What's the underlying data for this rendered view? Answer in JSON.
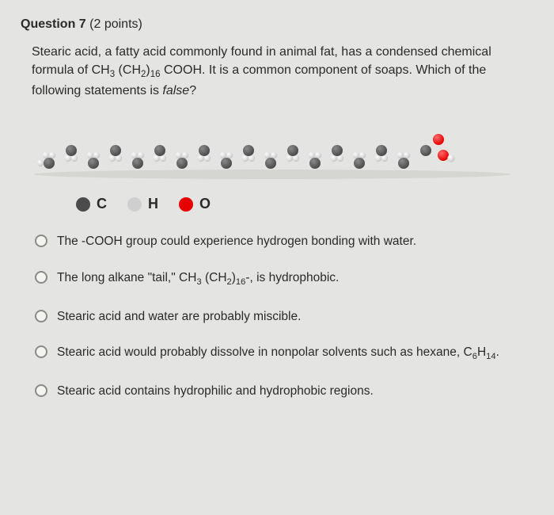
{
  "header": {
    "prefix": "Question",
    "number": "7",
    "points": "(2 points)"
  },
  "body": {
    "html": "Stearic acid, a fatty acid commonly found in animal fat, has a condensed chemical formula of CH<sub>3</sub> (CH<sub>2</sub>)<sub>16</sub> COOH. It is a common component of soaps. Which of the following statements is <span class='false'>false</span>?"
  },
  "legend": {
    "C": {
      "label": "C",
      "color": "#4b4b4b"
    },
    "H": {
      "label": "H",
      "color": "#cfcfcf"
    },
    "O": {
      "label": "O",
      "color": "#e60000"
    }
  },
  "molecule": {
    "colors": {
      "carbon": "#4b4b4b",
      "hydrogen": "#c7c7c7",
      "oxygen": "#e60000",
      "shadow": "#b9b9b5",
      "background": "#e4e4e2"
    },
    "chain_carbons": 18,
    "carbon_r": 7,
    "hydrogen_r": 4.2,
    "oxygen_r": 7,
    "zig_amplitude": 8,
    "x_step": 28
  },
  "options": [
    {
      "html": "The -COOH group could experience hydrogen bonding with water."
    },
    {
      "html": "The long alkane \"tail,\" CH<sub>3</sub> (CH<sub>2</sub>)<sub>16</sub>-, is hydrophobic."
    },
    {
      "html": "Stearic acid and water are probably miscible."
    },
    {
      "html": "Stearic acid would probably dissolve in nonpolar solvents such as hexane, C<sub>6</sub>H<sub>14</sub>."
    },
    {
      "html": "Stearic acid contains hydrophilic and hydrophobic regions."
    }
  ]
}
